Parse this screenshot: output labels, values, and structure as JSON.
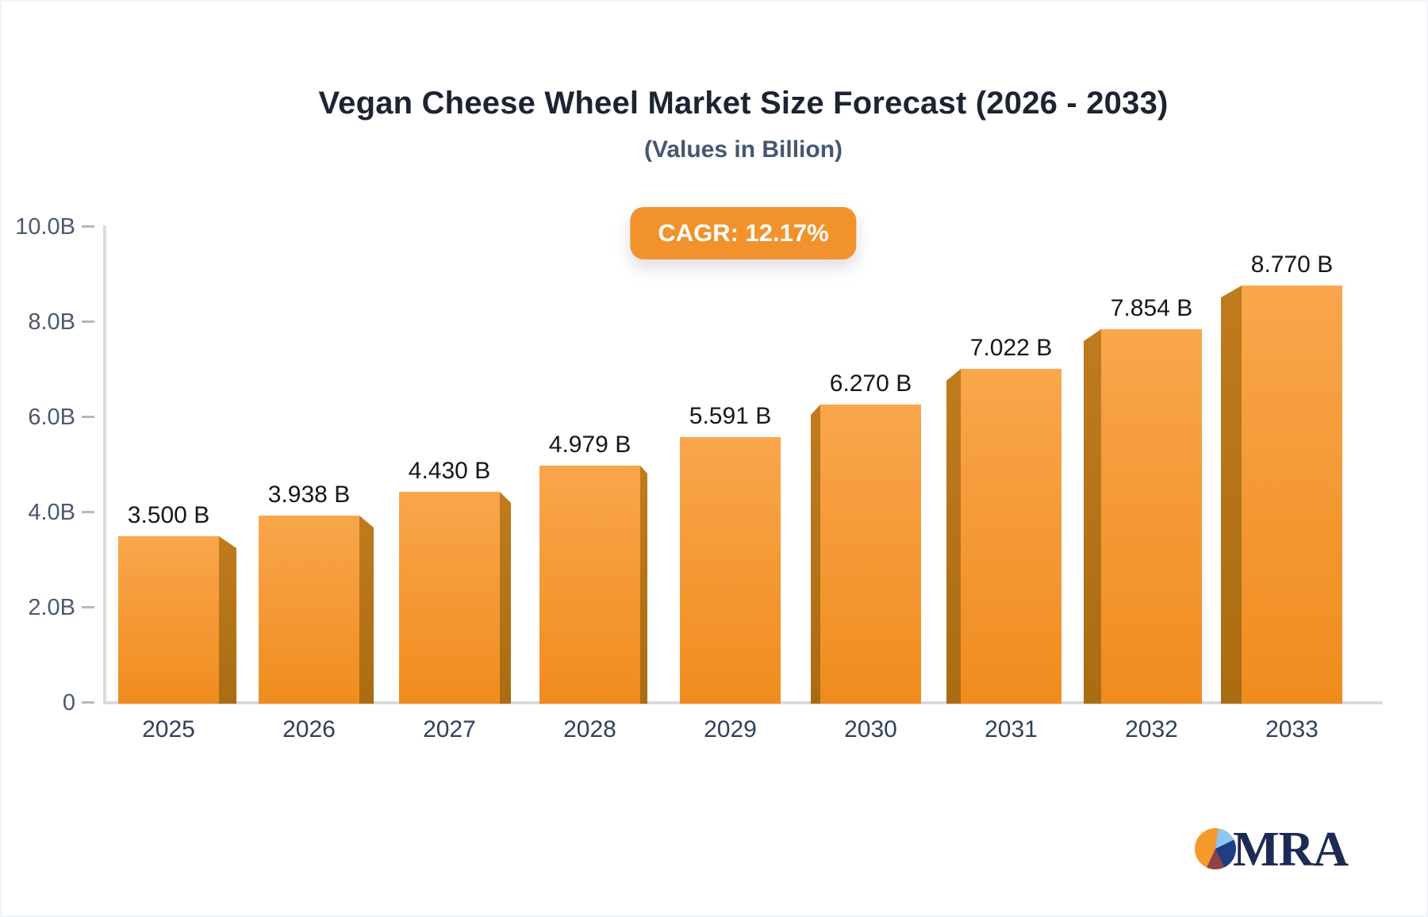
{
  "header": {
    "title": "Vegan Cheese Wheel Market Size Forecast (2026 - 2033)",
    "subtitle": "(Values in Billion)",
    "cagr_badge": "CAGR: 12.17%"
  },
  "chart_data": {
    "type": "bar",
    "title": "Vegan Cheese Wheel Market Size Forecast (2026 - 2033)",
    "subtitle": "(Values in Billion)",
    "cagr_percent": "12.17%",
    "categories": [
      "2025",
      "2026",
      "2027",
      "2028",
      "2029",
      "2030",
      "2031",
      "2032",
      "2033"
    ],
    "values": [
      3.5,
      3.938,
      4.43,
      4.979,
      5.591,
      6.27,
      7.022,
      7.854,
      8.77
    ],
    "value_labels": [
      "3.500 B",
      "3.938 B",
      "4.430 B",
      "4.979 B",
      "5.591 B",
      "6.270 B",
      "7.022 B",
      "7.854 B",
      "8.770 B"
    ],
    "unit": "Billion",
    "xlabel": "",
    "ylabel": "",
    "ylim": [
      0,
      10
    ],
    "y_ticks": [
      {
        "value": 0,
        "label": "0"
      },
      {
        "value": 2,
        "label": "2.0B"
      },
      {
        "value": 4,
        "label": "4.0B"
      },
      {
        "value": 6,
        "label": "6.0B"
      },
      {
        "value": 8,
        "label": "8.0B"
      },
      {
        "value": 10,
        "label": "10.0B"
      }
    ],
    "grid": false,
    "legend": "none",
    "style": "3d-perspective-bars"
  },
  "colors": {
    "bar_top": "#f9a64c",
    "bar_bottom": "#f08c1e",
    "bar_side": "#b37117",
    "badge_bg": "#f1922c",
    "title_text": "#1c2431",
    "subtitle_text": "#46566f",
    "axis_line": "#d7dade",
    "tick_text": "#4c5870",
    "year_text": "#30405d",
    "value_text": "#14171c",
    "logo_navy": "#1b2a56",
    "logo_orange": "#f49a2d",
    "logo_lightblue": "#8cc7ef",
    "logo_blue": "#1e3e86",
    "logo_maroon": "#8c4247"
  },
  "logo": {
    "text": "MRA",
    "icon": "pie-chart-icon"
  }
}
